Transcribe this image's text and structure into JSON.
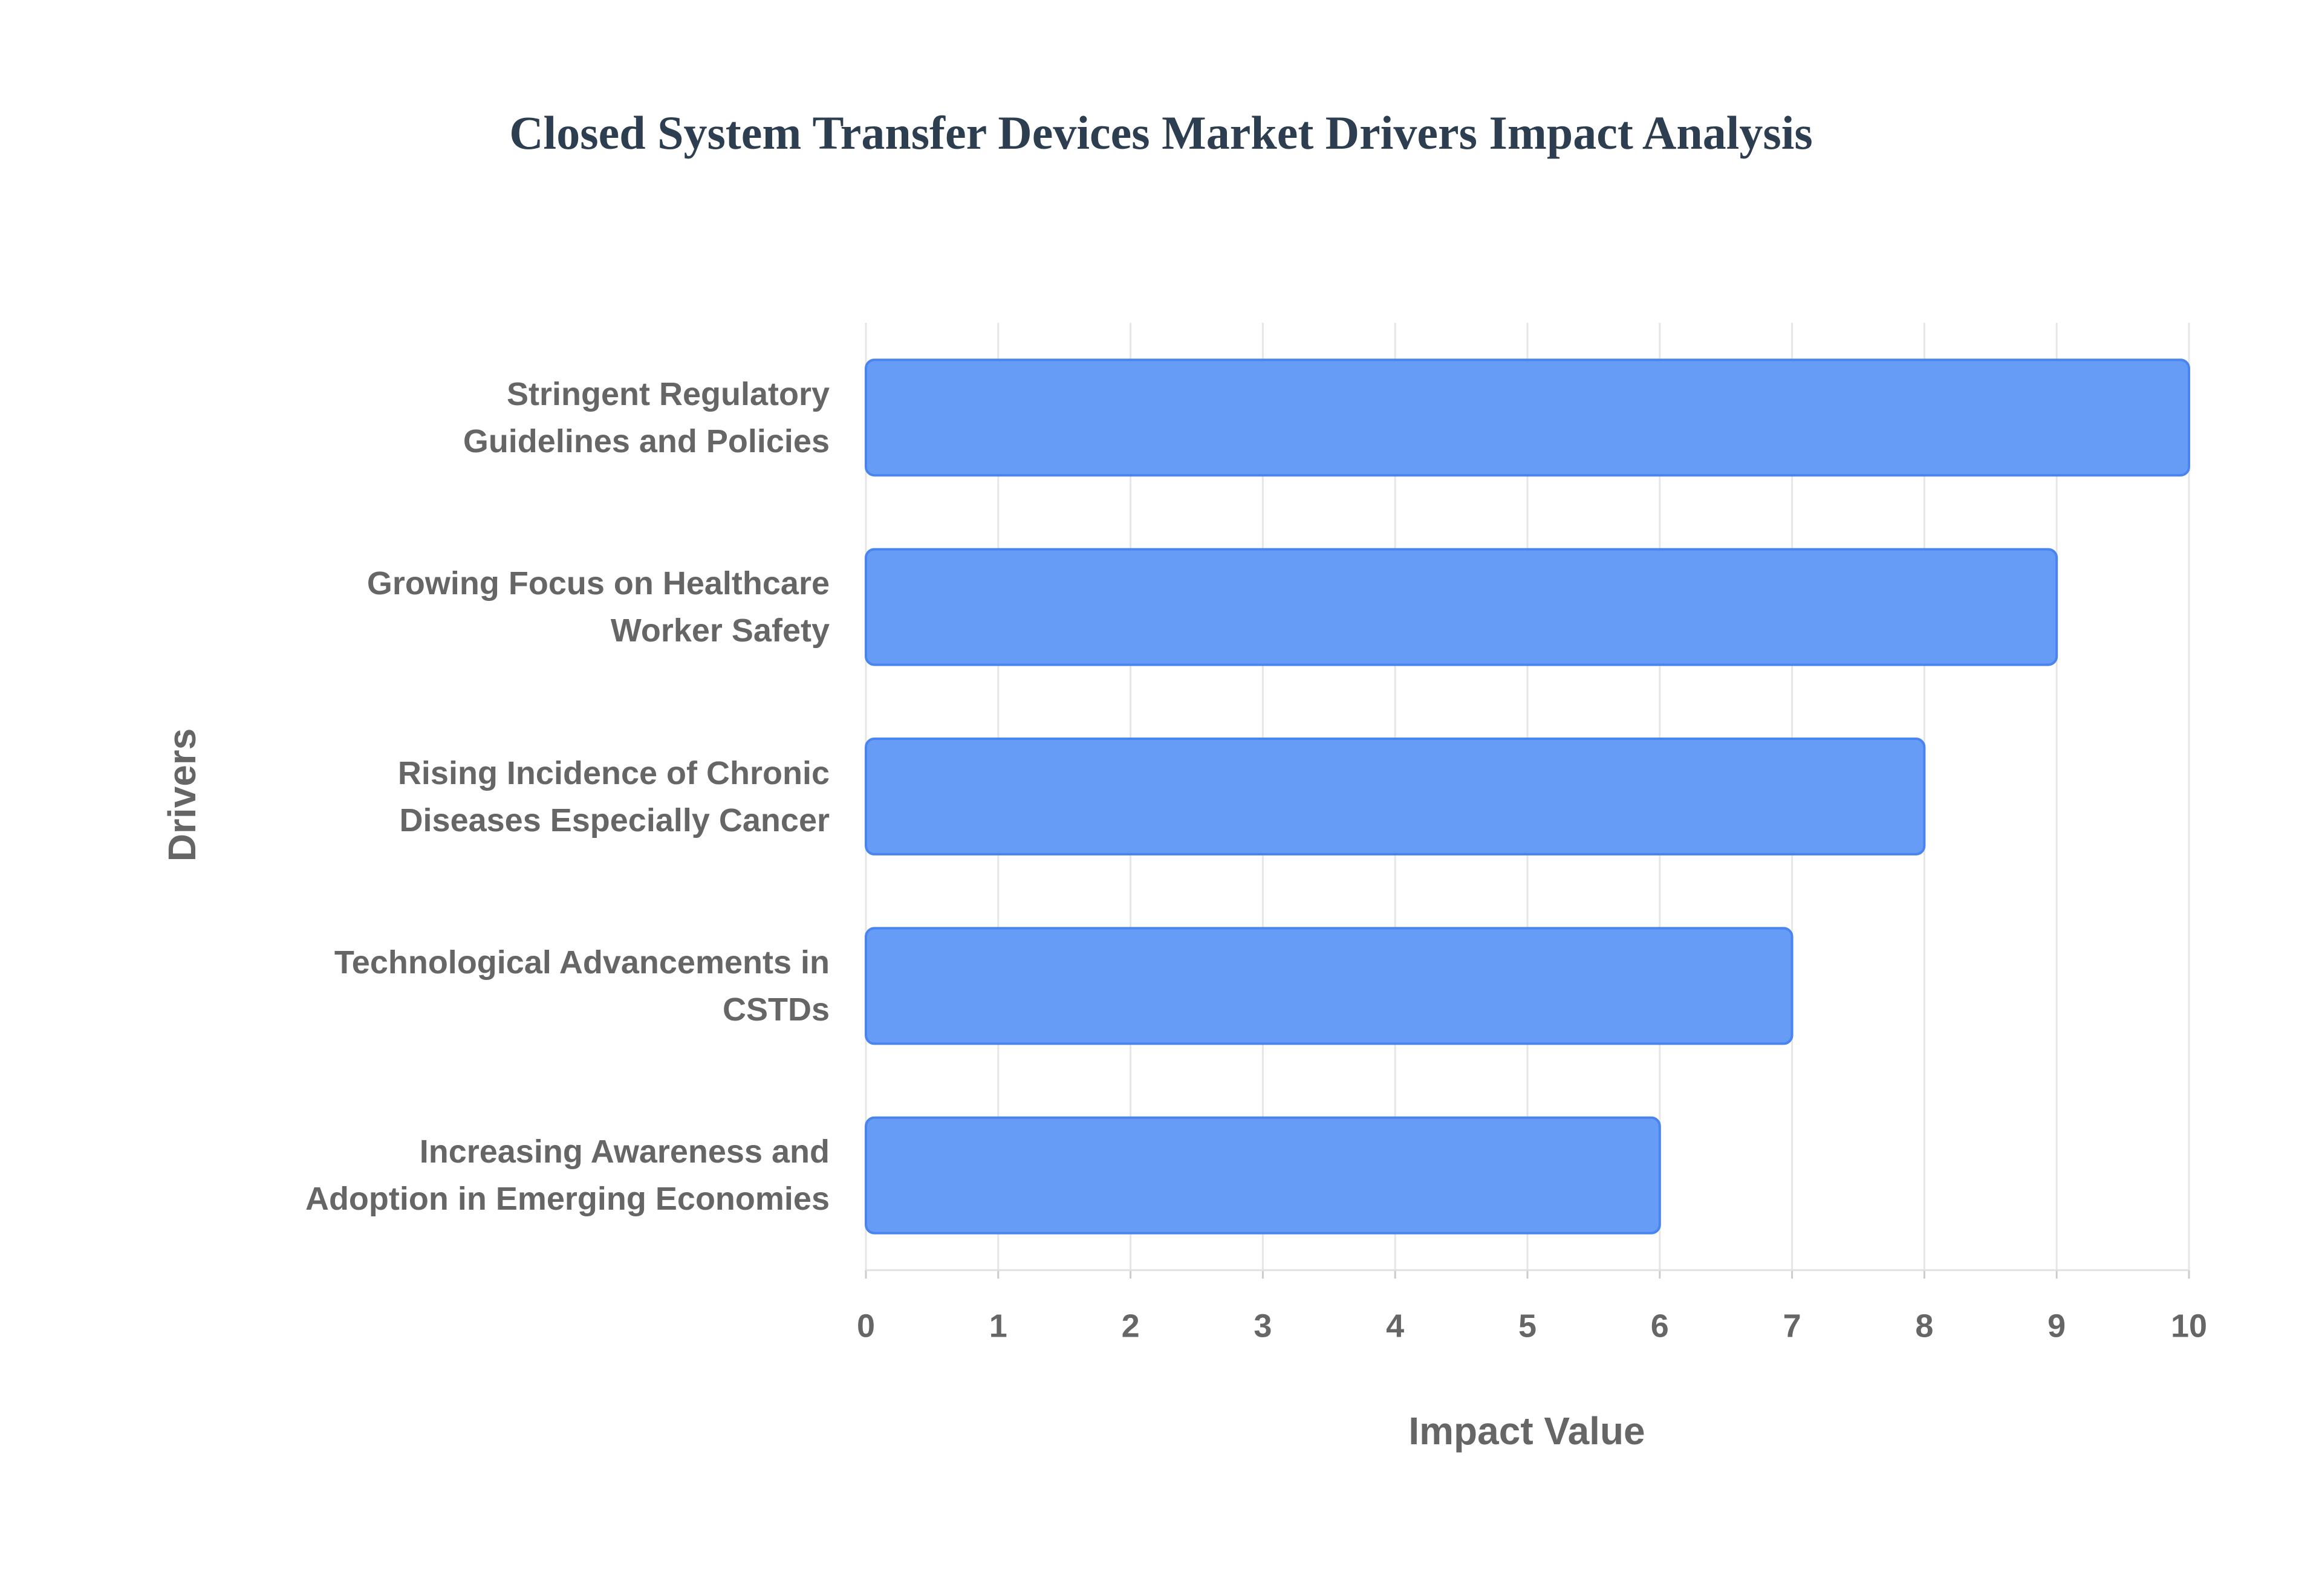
{
  "chart_data": {
    "type": "bar",
    "orientation": "horizontal",
    "title": "Closed System Transfer Devices Market Drivers Impact Analysis",
    "x_label": "Impact Value",
    "y_label": "Drivers",
    "categories": [
      "Stringent Regulatory\nGuidelines and Policies",
      "Growing Focus on Healthcare\nWorker Safety",
      "Rising Incidence of Chronic\nDiseases Especially Cancer",
      "Technological Advancements in\nCSTDs",
      "Increasing Awareness and\nAdoption in Emerging Economies"
    ],
    "values": [
      10,
      9,
      8,
      7,
      6
    ],
    "color": "#6199f5",
    "edge_color": "#4a84ef",
    "xlim": [
      0,
      10
    ],
    "xticks": [
      0,
      1,
      2,
      3,
      4,
      5,
      6,
      7,
      8,
      9,
      10
    ],
    "grid": true
  }
}
